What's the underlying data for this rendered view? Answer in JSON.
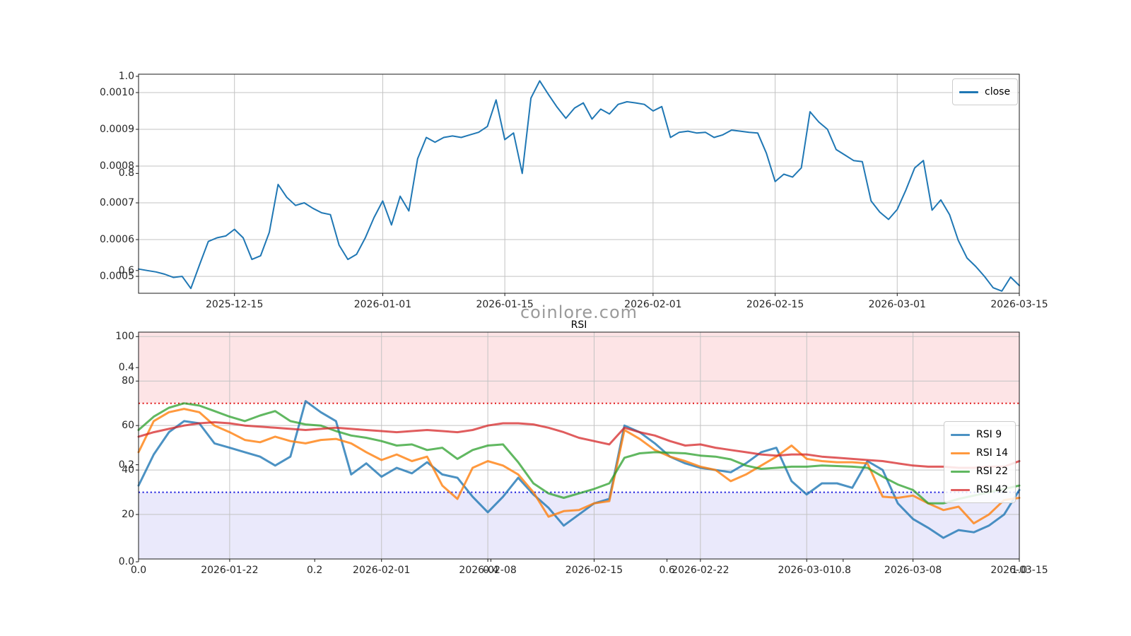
{
  "watermark": "coinlore.com",
  "colors": {
    "close_line": "#1f77b4",
    "rsi9": "rgba(31,119,180,0.8)",
    "rsi14": "rgba(255,127,14,0.8)",
    "rsi22": "rgba(44,160,44,0.75)",
    "rsi42": "rgba(214,39,40,0.75)",
    "overbought_dotted": "#e01414",
    "oversold_dotted": "#1414dc",
    "overbought_band": "rgba(244,67,80,0.14)",
    "oversold_band": "rgba(84,70,220,0.12)",
    "grid": "#c3c3c3",
    "spine": "#1a1a1a",
    "watermark_gray": "#787878"
  },
  "ghost_axis": {
    "y_labels": [
      "1.0",
      "0.8",
      "0.6",
      "0.4",
      "0.2",
      "0.0"
    ],
    "x_labels": [
      "0.0",
      "0.2",
      "0.4",
      "0.6",
      "0.8",
      "1.0"
    ]
  },
  "chart_data": [
    {
      "type": "line",
      "panel": "price",
      "title": "",
      "legend": [
        "close"
      ],
      "legend_position": "upper right",
      "grid": true,
      "x_start": "2025-12-04",
      "x_end": "2026-03-15",
      "x_ticks": [
        "2025-12-15",
        "2026-01-01",
        "2026-01-15",
        "2026-02-01",
        "2026-02-15",
        "2026-03-01",
        "2026-03-15"
      ],
      "y_ticks": [
        {
          "label": "0.0010",
          "value": 0.001
        },
        {
          "label": "0.0009",
          "value": 0.0009
        },
        {
          "label": "0.0008",
          "value": 0.0008
        },
        {
          "label": "0.0007",
          "value": 0.0007
        },
        {
          "label": "0.0006",
          "value": 0.0006
        },
        {
          "label": "0.0005",
          "value": 0.0005
        }
      ],
      "ylim": [
        0.000454,
        0.00105
      ],
      "series": [
        {
          "name": "close",
          "color_key": "close_line",
          "width": 2,
          "values": [
            0.00052,
            0.000516,
            0.000512,
            0.000506,
            0.000497,
            0.0005,
            0.000467,
            0.000532,
            0.000595,
            0.000605,
            0.00061,
            0.000628,
            0.000605,
            0.000546,
            0.000556,
            0.00062,
            0.00075,
            0.000715,
            0.000693,
            0.0007,
            0.000685,
            0.000673,
            0.000668,
            0.000585,
            0.000546,
            0.00056,
            0.000605,
            0.00066,
            0.000705,
            0.00064,
            0.000718,
            0.000678,
            0.00082,
            0.000878,
            0.000865,
            0.000878,
            0.000882,
            0.000878,
            0.000885,
            0.000892,
            0.000908,
            0.00098,
            0.000872,
            0.00089,
            0.00078,
            0.000985,
            0.001032,
            0.000995,
            0.00096,
            0.00093,
            0.000958,
            0.000972,
            0.000928,
            0.000955,
            0.000942,
            0.000968,
            0.000975,
            0.000972,
            0.000968,
            0.00095,
            0.000962,
            0.000878,
            0.000892,
            0.000895,
            0.00089,
            0.000892,
            0.000878,
            0.000885,
            0.000898,
            0.000895,
            0.000892,
            0.00089,
            0.000835,
            0.000758,
            0.000778,
            0.00077,
            0.000795,
            0.000948,
            0.00092,
            0.0009,
            0.000845,
            0.00083,
            0.000815,
            0.000812,
            0.000705,
            0.000675,
            0.000655,
            0.000682,
            0.000735,
            0.000795,
            0.000815,
            0.00068,
            0.000708,
            0.000668,
            0.000598,
            0.00055,
            0.000527,
            0.0005,
            0.000469,
            0.00046,
            0.000498,
            0.000475
          ]
        }
      ]
    },
    {
      "type": "line",
      "panel": "rsi",
      "title": "RSI",
      "legend": [
        "RSI 9",
        "RSI 14",
        "RSI 22",
        "RSI 42"
      ],
      "legend_position": "center right",
      "grid": true,
      "x_start": "2026-01-16",
      "x_end": "2026-03-15",
      "x_ticks": [
        "2026-01-22",
        "2026-02-01",
        "2026-02-08",
        "2026-02-15",
        "2026-02-22",
        "2026-03-01",
        "2026-03-08",
        "2026-03-15"
      ],
      "y_ticks": [
        {
          "label": "100",
          "value": 100
        },
        {
          "label": "80",
          "value": 80
        },
        {
          "label": "60",
          "value": 60
        },
        {
          "label": "40",
          "value": 40
        },
        {
          "label": "20",
          "value": 20
        }
      ],
      "ylim": [
        0,
        102
      ],
      "overbought_level": 70,
      "oversold_level": 30,
      "series": [
        {
          "name": "RSI 9",
          "color_key": "rsi9",
          "width": 3,
          "values": [
            33,
            47,
            57,
            62,
            61,
            52,
            50,
            48,
            46,
            42,
            46,
            71,
            66,
            62,
            38,
            43,
            37,
            41,
            38.5,
            43.5,
            38,
            36.5,
            28,
            21,
            28,
            36.5,
            29,
            23,
            15,
            20,
            25,
            27,
            60,
            57,
            52,
            46,
            43,
            41,
            40,
            39,
            43,
            48,
            50,
            35,
            29,
            34,
            34,
            32,
            44,
            40,
            25,
            18,
            14,
            9.5,
            13,
            12,
            15,
            20,
            31
          ]
        },
        {
          "name": "RSI 14",
          "color_key": "rsi14",
          "width": 3,
          "values": [
            48,
            62,
            66,
            67.5,
            66,
            60,
            57,
            53.5,
            52.5,
            55,
            53,
            52,
            53.5,
            54,
            52,
            48,
            44.5,
            47,
            44,
            46,
            33,
            27,
            41,
            44,
            42,
            38,
            30,
            19,
            21.5,
            22,
            25,
            26,
            58,
            54,
            49,
            46,
            44,
            41.5,
            40,
            35,
            38,
            42,
            46,
            51,
            45,
            44,
            43.5,
            43.5,
            43,
            28,
            27.5,
            28.5,
            25,
            22,
            23.5,
            16,
            20,
            26.5,
            27.5
          ]
        },
        {
          "name": "RSI 22",
          "color_key": "rsi22",
          "width": 3,
          "values": [
            58,
            64,
            68,
            70,
            69,
            66.5,
            64,
            62,
            64.5,
            66.5,
            62,
            60.5,
            60,
            57.5,
            55.5,
            54.5,
            53,
            51,
            51.5,
            49,
            50,
            45,
            49,
            51,
            51.5,
            43.5,
            34,
            29.5,
            27.5,
            29.5,
            31.5,
            34,
            45.5,
            47.5,
            48,
            47.8,
            47.5,
            46.5,
            46,
            44.8,
            42,
            40.5,
            41,
            41.5,
            41.5,
            42,
            41.8,
            41.5,
            41,
            37,
            33.5,
            31,
            25,
            25,
            27,
            28.5,
            30,
            31.5,
            33
          ]
        },
        {
          "name": "RSI 42",
          "color_key": "rsi42",
          "width": 3,
          "values": [
            55,
            57,
            58.5,
            60,
            61,
            61.5,
            61,
            60,
            59.5,
            59,
            58.5,
            58,
            58.5,
            59,
            58.5,
            58,
            57.5,
            57,
            57.5,
            58,
            57.5,
            57,
            58,
            60,
            61,
            61,
            60.5,
            59,
            57,
            54.5,
            53,
            51.5,
            59,
            57,
            55.5,
            53,
            51,
            51.5,
            50,
            49,
            48,
            47,
            46.5,
            47,
            47,
            46,
            45.5,
            45,
            44.5,
            44,
            43,
            42,
            41.5,
            41.5,
            41,
            41,
            41.5,
            41.5,
            44
          ]
        }
      ]
    }
  ]
}
